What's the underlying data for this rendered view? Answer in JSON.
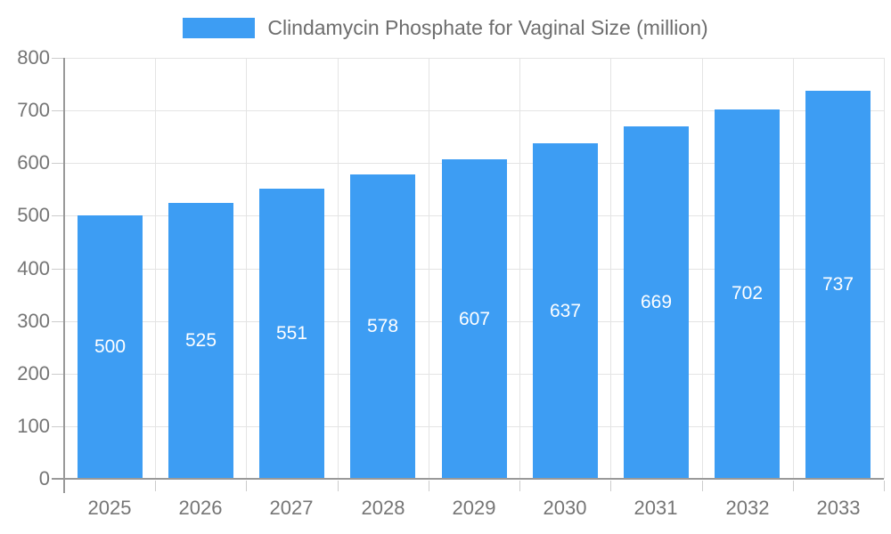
{
  "legend": {
    "label": "Clindamycin Phosphate for Vaginal Size (million)"
  },
  "chart_data": {
    "type": "bar",
    "title": "Clindamycin Phosphate for Vaginal Size (million)",
    "categories": [
      "2025",
      "2026",
      "2027",
      "2028",
      "2029",
      "2030",
      "2031",
      "2032",
      "2033"
    ],
    "values": [
      500,
      525,
      551,
      578,
      607,
      637,
      669,
      702,
      737
    ],
    "xlabel": "",
    "ylabel": "",
    "ylim": [
      0,
      800
    ],
    "ytick_step": 100,
    "ytick_labels": [
      "0",
      "100",
      "200",
      "300",
      "400",
      "500",
      "600",
      "700",
      "800"
    ],
    "grid": true,
    "legend_position": "top",
    "bar_labels_inside": true
  },
  "colors": {
    "bar": "#3d9df3",
    "bar_value_text": "#ffffff",
    "axis": "#999999",
    "gridline": "#e4e4e4",
    "tick": "#cccccc",
    "axis_label_text": "#757575",
    "legend_text": "#6e6e6e",
    "background": "#ffffff"
  }
}
